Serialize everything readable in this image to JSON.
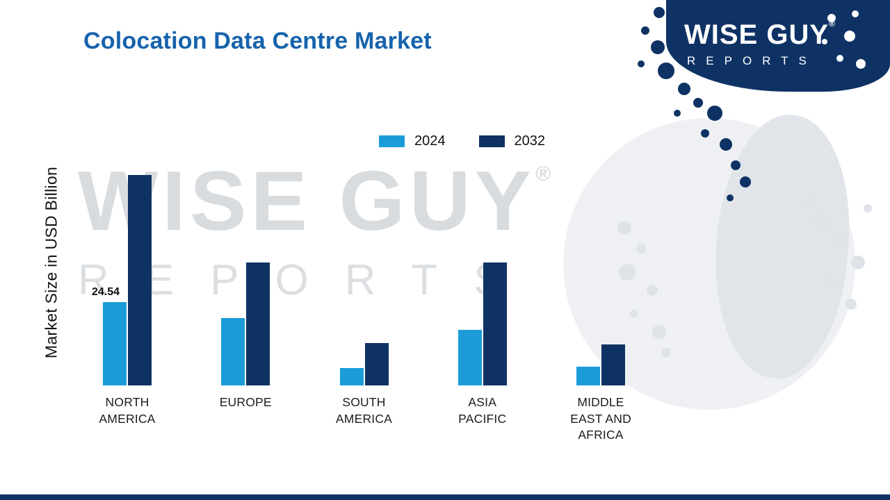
{
  "watermark": {
    "line1": "WISE GUY",
    "reg": "®",
    "line2": "REPORTS"
  },
  "logo": {
    "line1": "WISE GUY",
    "reg": "®",
    "line2": "REPORTS"
  },
  "colors": {
    "series_2024": "#1b9cd8",
    "series_2032": "#0e3264",
    "title_blue": "#1663ac"
  },
  "chart_data": {
    "type": "bar",
    "title": "Colocation Data Centre Market",
    "ylabel": "Market Size in USD Billion",
    "xlabel": "",
    "categories": [
      "NORTH AMERICA",
      "EUROPE",
      "SOUTH AMERICA",
      "ASIA PACIFIC",
      "MIDDLE EAST AND AFRICA"
    ],
    "series": [
      {
        "name": "2024",
        "color": "#1b9cd8",
        "values": [
          24.54,
          19.8,
          5.2,
          16.3,
          5.6
        ]
      },
      {
        "name": "2032",
        "color": "#0e3264",
        "values": [
          62,
          36.2,
          12.4,
          36.2,
          12
        ]
      }
    ],
    "ylim": [
      0,
      65
    ],
    "grid": false,
    "legend_position": "top",
    "annotation": {
      "category_index": 0,
      "series_index": 0,
      "text": "24.54"
    }
  }
}
